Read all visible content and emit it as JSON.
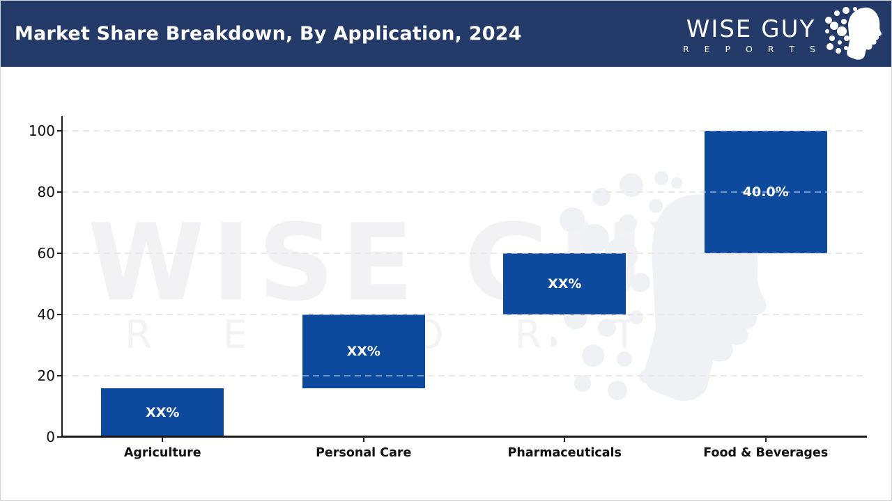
{
  "header": {
    "title": "Market Share Breakdown, By Application, 2024",
    "logo": {
      "line1": "WISE GUY",
      "line2": "R E P O R T S"
    }
  },
  "watermark": {
    "line1": "WISE GUY",
    "line2": "R E P O R T S"
  },
  "colors": {
    "header_bg": "#243a68",
    "bar": "#0d4a9e",
    "bar_label": "#ffffff",
    "grid": "#d9d9d9",
    "axis": "#1a1a1a",
    "watermark": "#f2f2f5"
  },
  "chart_data": {
    "type": "bar",
    "subtype": "waterfall",
    "title": "Market Share Breakdown, By Application, 2024",
    "xlabel": "",
    "ylabel": "",
    "categories": [
      "Agriculture",
      "Personal Care",
      "Pharmaceuticals",
      "Food & Beverages"
    ],
    "bars": [
      {
        "category": "Agriculture",
        "start": 0,
        "end": 16,
        "label": "XX%"
      },
      {
        "category": "Personal Care",
        "start": 16,
        "end": 40,
        "label": "XX%"
      },
      {
        "category": "Pharmaceuticals",
        "start": 40,
        "end": 60,
        "label": "XX%"
      },
      {
        "category": "Food & Beverages",
        "start": 60,
        "end": 100,
        "label": "40.0%"
      }
    ],
    "yticks": [
      0,
      20,
      40,
      60,
      80,
      100
    ],
    "ylim": [
      0,
      104
    ],
    "grid": "dashed-horizontal",
    "legend": "none"
  }
}
